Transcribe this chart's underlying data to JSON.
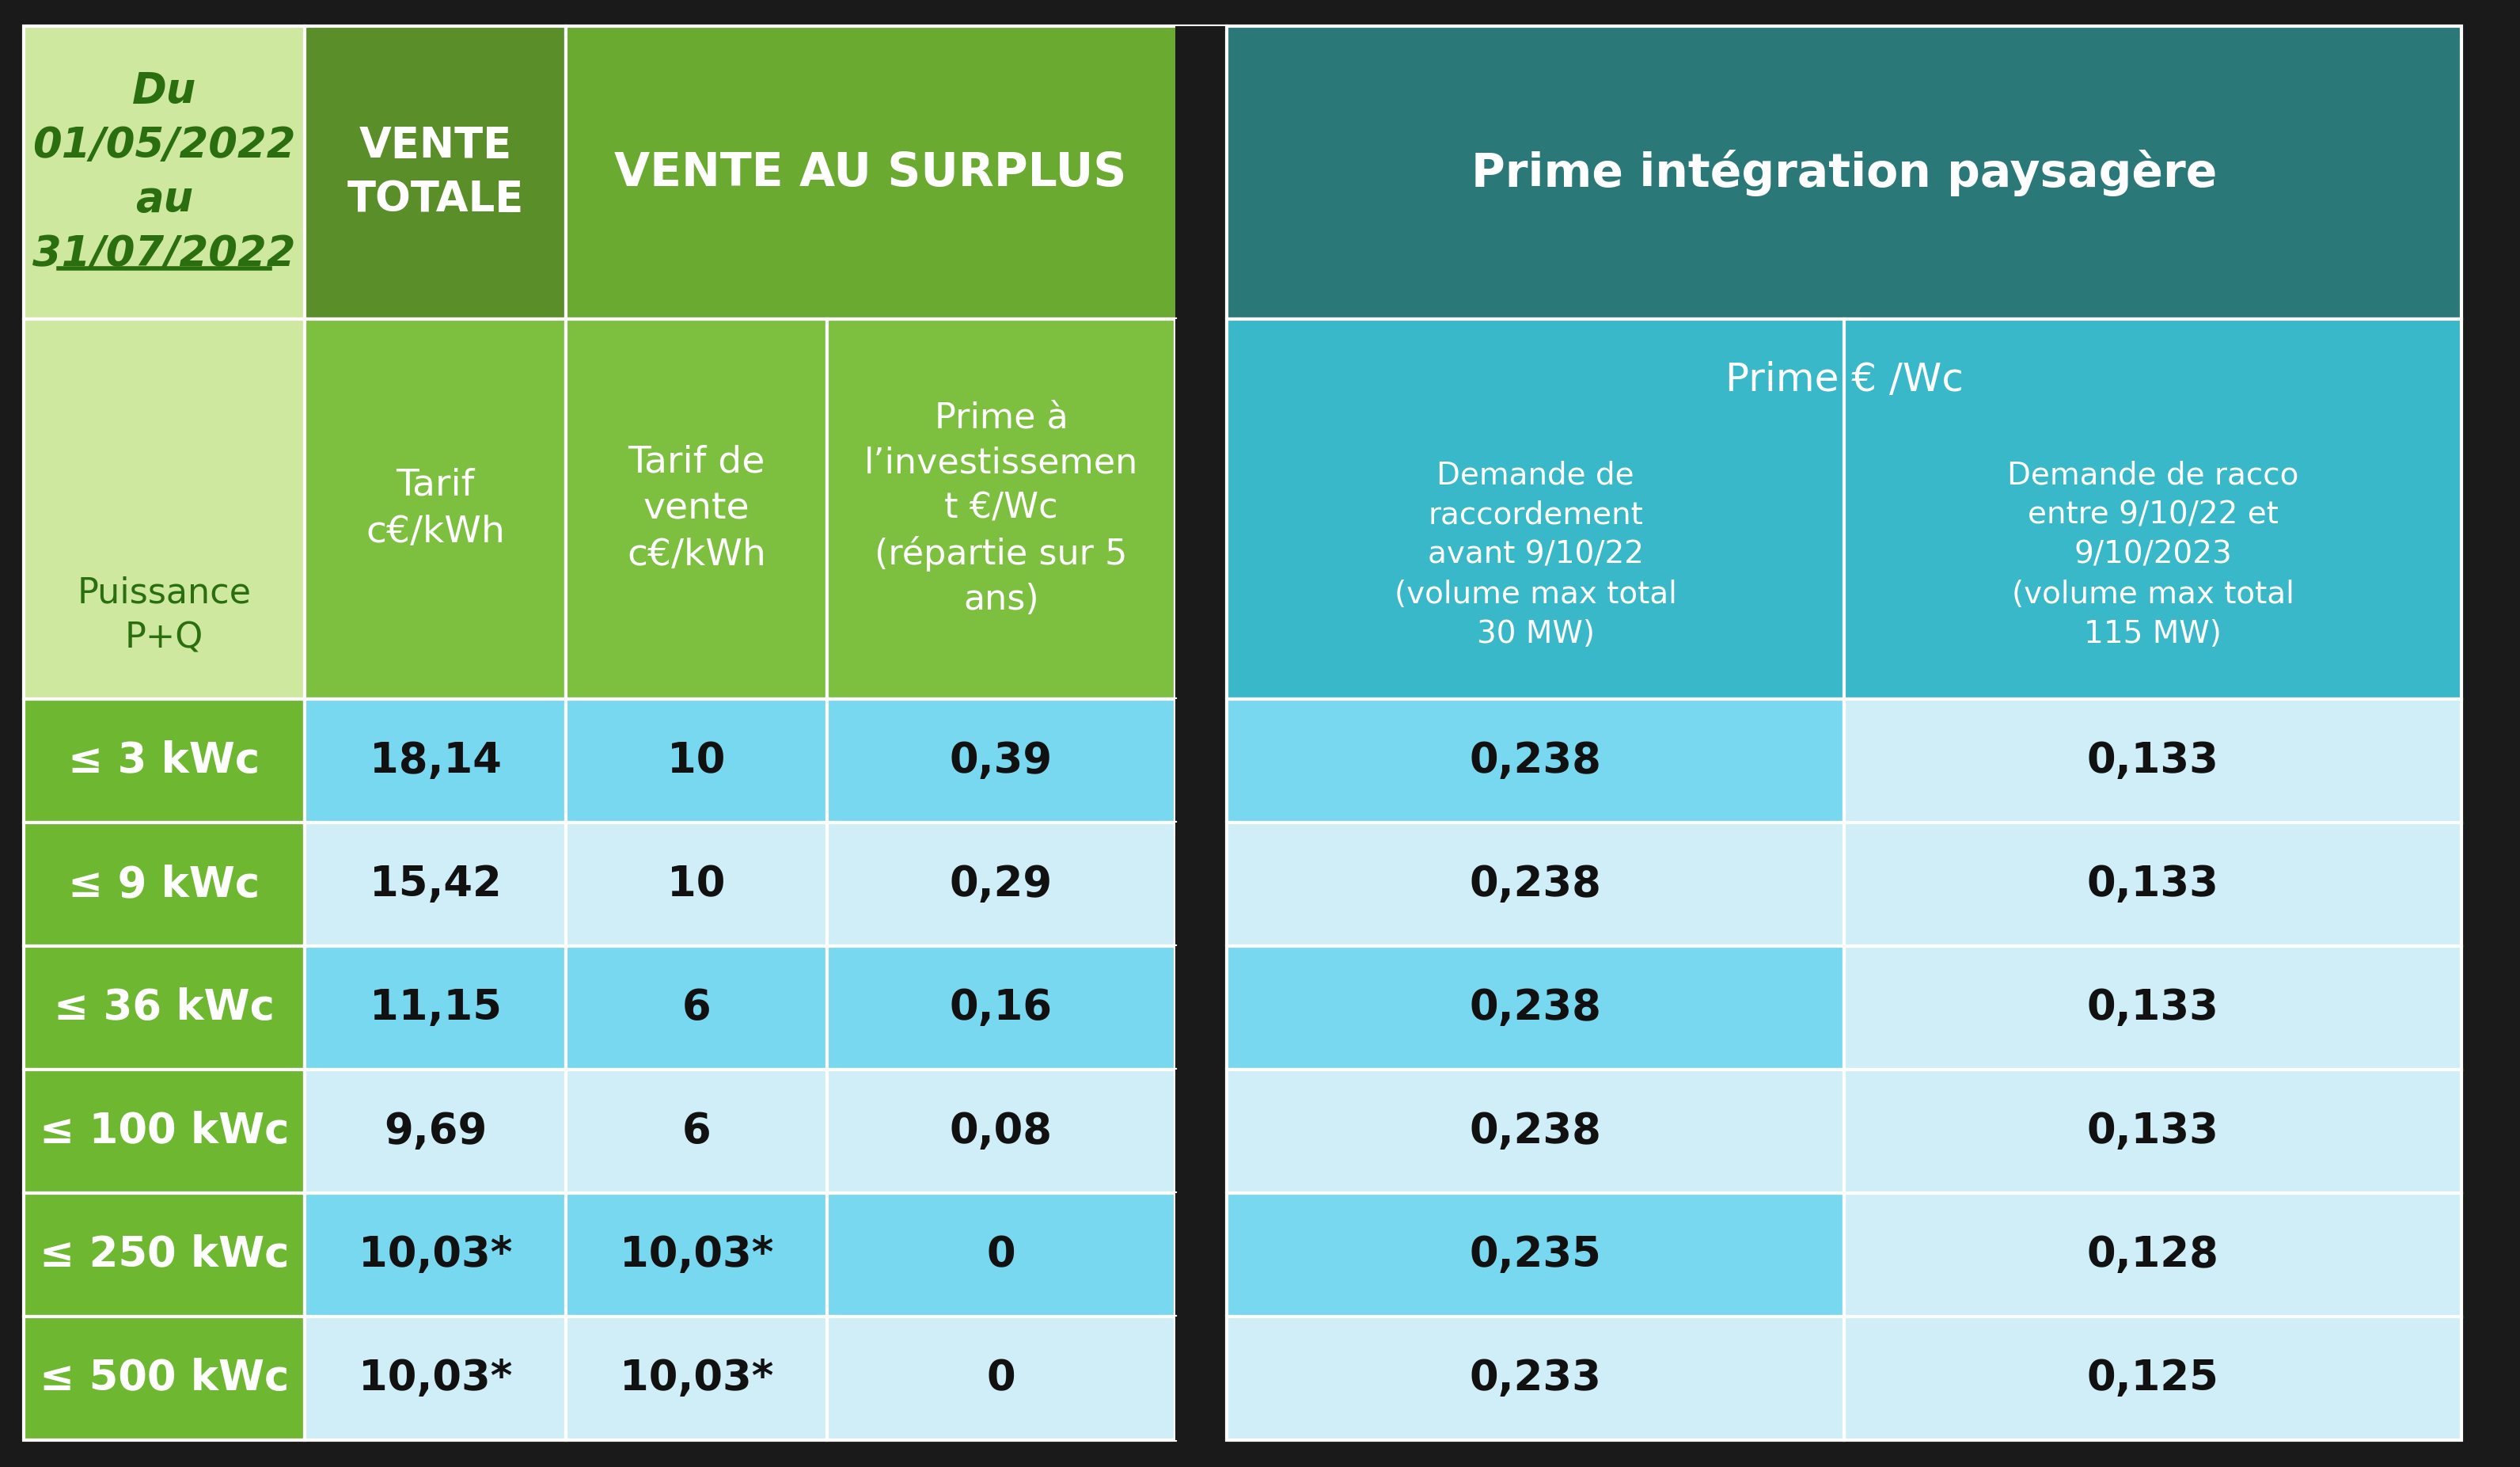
{
  "col1_header_bg": "#cee8a0",
  "col2_header_bg": "#5a8e28",
  "col3_header_bg": "#6aaa30",
  "col4_header_bg": "#2a7878",
  "col2_sub_bg": "#7dc040",
  "col3_sub_bg": "#7dc040",
  "col4_sub_bg": "#38b8c8",
  "row_label_bg_odd": "#6db830",
  "row_label_bg_even": "#6db830",
  "row_data_blue1": "#78d8f0",
  "row_data_blue2": "#d0eef8",
  "row_data_blue3": "#78d8f0",
  "row_data_blue4": "#d0eef8",
  "row_data_blue5": "#78d8f0",
  "row_data_blue6": "#d0eef8",
  "row_col4a_1": "#78d8f0",
  "row_col4b_1": "#b8ecf8",
  "row_col4a_2": "#d0eef8",
  "row_col4b_2": "#d0eef8",
  "row_col4a_3": "#78d8f0",
  "row_col4b_3": "#b8ecf8",
  "row_col4a_4": "#d0eef8",
  "row_col4b_4": "#d0eef8",
  "row_col4a_5": "#78d8f0",
  "row_col4b_5": "#b8ecf8",
  "row_col4a_6": "#d0eef8",
  "row_col4b_6": "#d0eef8",
  "outer_bg": "#222222",
  "date_text": "Du\n01/05/2022\nau\n31/07/2022",
  "date_color": "#2a6e10",
  "puissance_text": "Puissance\nP+Q",
  "puissance_color": "#2a6e10",
  "col2_header_text": "VENTE\nTOTALE",
  "col3_header_text": "VENTE AU SURPLUS",
  "col4_header_text": "Prime intégration paysagère",
  "col2_sub_text": "Tarif\nc€/kWh",
  "col3a_sub_text": "Tarif de\nvente\nc€/kWh",
  "col3b_sub_text": "Prime à\nl’investissemen\nt €/Wc\n(répartie sur 5\nans)",
  "col4_prime_text": "Prime € /Wc",
  "col4a_sub_text": "Demande de\nraccordement\navant 9/10/22\n(volume max total\n30 MW)",
  "col4b_sub_text": "Demande de racco\nentre 9/10/22 et\n9/10/2023\n(volume max total\n115 MW)",
  "row_labels": [
    "≤ 3 kWc",
    "≤ 9 kWc",
    "≤ 36 kWc",
    "≤ 100 kWc",
    "≤ 250 kWc",
    "≤ 500 kWc"
  ],
  "col2_data": [
    "18,14",
    "15,42",
    "11,15",
    "9,69",
    "10,03*",
    "10,03*"
  ],
  "col3a_data": [
    "10",
    "10",
    "6",
    "6",
    "10,03*",
    "10,03*"
  ],
  "col3b_data": [
    "0,39",
    "0,29",
    "0,16",
    "0,08",
    "0",
    "0"
  ],
  "col4a_data": [
    "0,238",
    "0,238",
    "0,238",
    "0,238",
    "0,235",
    "0,233"
  ],
  "col4b_data": [
    "0,133",
    "0,133",
    "0,133",
    "0,133",
    "0,128",
    "0,125"
  ]
}
